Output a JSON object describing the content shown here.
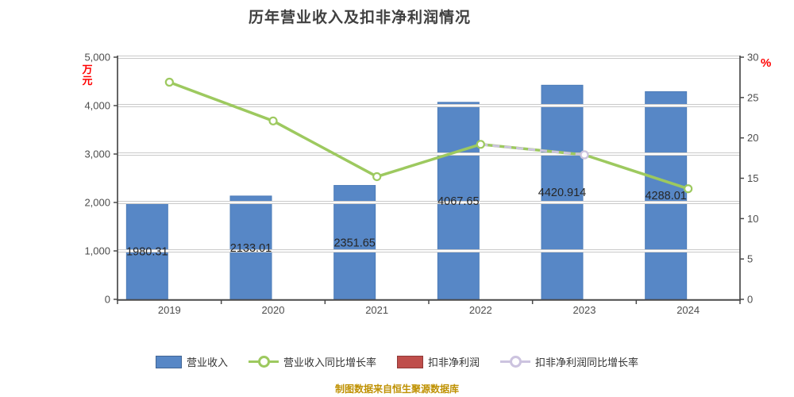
{
  "chart": {
    "title": "历年营业收入及扣非净利润情况",
    "caption": "制图数据来自恒生聚源数据库",
    "legend": [
      {
        "label": "营业收入",
        "swatch": "bar",
        "color": "#5787c6"
      },
      {
        "label": "营业收入同比增长率",
        "swatch": "line-marker",
        "color": "#9dc95f"
      },
      {
        "label": "扣非净利润",
        "swatch": "bar",
        "color": "#bf4e4b"
      },
      {
        "label": "扣非净利润同比增长率",
        "swatch": "line-marker",
        "color": "#ccc3df"
      }
    ]
  },
  "chart_data": {
    "type": "combo",
    "title": "历年营业收入及扣非净利润情况",
    "categories": [
      "2019",
      "2020",
      "2021",
      "2022",
      "2023",
      "2024"
    ],
    "series": [
      {
        "name": "营业收入",
        "type": "bar",
        "y_axis": "left",
        "color": "#5787c6",
        "values": [
          1980.31,
          2133.01,
          2351.65,
          4067.65,
          4420.914,
          4288.01
        ],
        "data_labels": [
          "1980.31",
          "2133.01",
          "2351.65",
          "4067.65",
          "4420.914",
          "4288.01"
        ]
      },
      {
        "name": "营业收入同比增长率",
        "type": "line",
        "y_axis": "right",
        "color": "#9dc95f",
        "values": [
          26.9,
          22.1,
          15.2,
          19.2,
          17.9,
          13.7
        ]
      },
      {
        "name": "扣非净利润",
        "type": "bar",
        "y_axis": "left",
        "color": "#bf4e4b",
        "values": [
          null,
          null,
          null,
          null,
          null,
          null
        ]
      },
      {
        "name": "扣非净利润同比增长率",
        "type": "line",
        "y_axis": "right",
        "color": "#ccc3df",
        "line_style": "dashed",
        "values": [
          null,
          null,
          null,
          19.2,
          17.9,
          null
        ]
      }
    ],
    "left_axis": {
      "min": 0,
      "max": 5000,
      "unit": "万元",
      "tick_values": [
        0,
        1000,
        2000,
        3000,
        4000,
        5000
      ],
      "tick_labels": [
        "0",
        "1,000",
        "2,000",
        "3,000",
        "4,000",
        "5,000"
      ]
    },
    "right_axis": {
      "min": 0,
      "max": 30,
      "unit": "%",
      "tick_values": [
        0,
        5,
        10,
        15,
        20,
        25,
        30
      ],
      "tick_labels": [
        "0",
        "5",
        "10",
        "15",
        "20",
        "25",
        "30"
      ]
    },
    "grid": true,
    "legend_position": "bottom"
  },
  "colors": {
    "bar_fill": "#5787c6",
    "bar_edge": "#4d7cb8",
    "line_green": "#9dc95f",
    "red_series": "#bf4e4b",
    "purple_series": "#ccc3df",
    "axis_text": "#4d4d4d",
    "value_label_text": "#262626",
    "unit_red": "#ff0000",
    "title_text": "#404040",
    "caption_gold": "#bf9102",
    "gridline": "#c9c9c9",
    "axis_line": "#4a4a4a"
  }
}
